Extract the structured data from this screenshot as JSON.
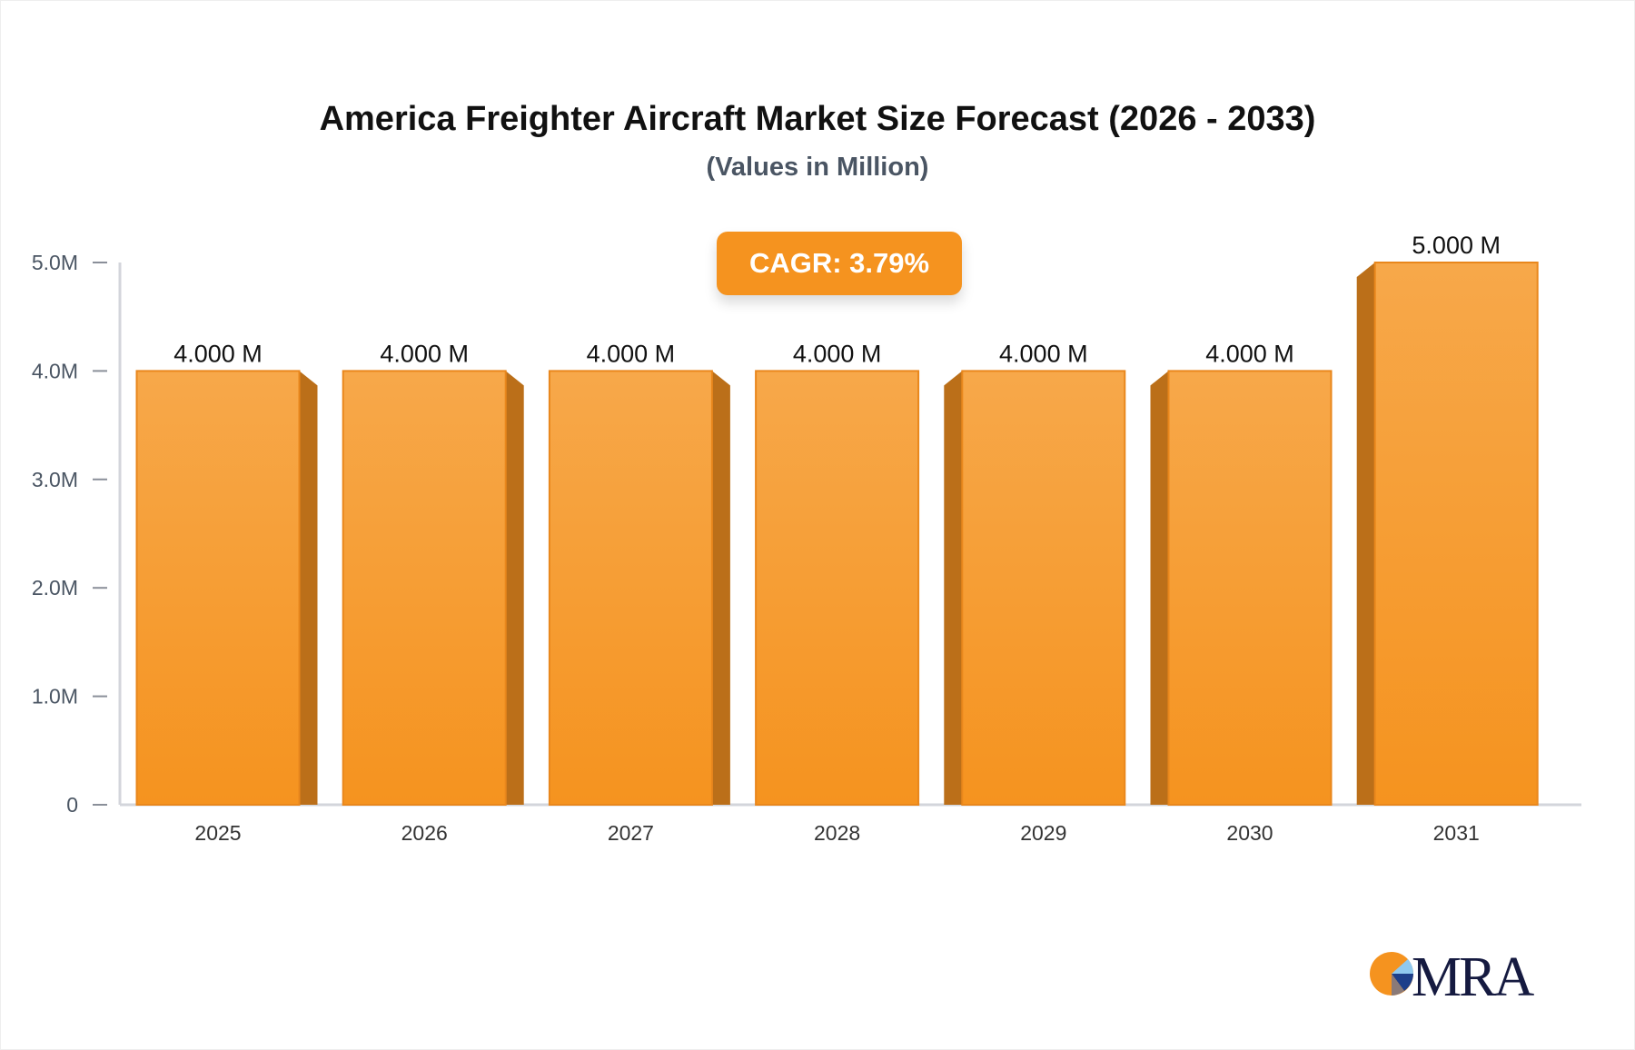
{
  "chart_data": {
    "type": "bar",
    "title": "America Freighter Aircraft Market Size Forecast (2026 - 2033)",
    "subtitle": "(Values in Million)",
    "categories": [
      "2025",
      "2026",
      "2027",
      "2028",
      "2029",
      "2030",
      "2031"
    ],
    "values": [
      4.0,
      4.0,
      4.0,
      4.0,
      4.0,
      4.0,
      5.0
    ],
    "data_labels": [
      "4.000 M",
      "4.000 M",
      "4.000 M",
      "4.000 M",
      "4.000 M",
      "4.000 M",
      "5.000 M"
    ],
    "yticks": [
      "0",
      "1.0M",
      "2.0M",
      "3.0M",
      "4.0M",
      "5.0M"
    ],
    "ylim": [
      0,
      5
    ],
    "xlabel": "",
    "ylabel": "",
    "grid": false,
    "bar_color": "#f5931f",
    "annotation": "CAGR: 3.79%"
  },
  "logo": {
    "text": "MRA"
  }
}
